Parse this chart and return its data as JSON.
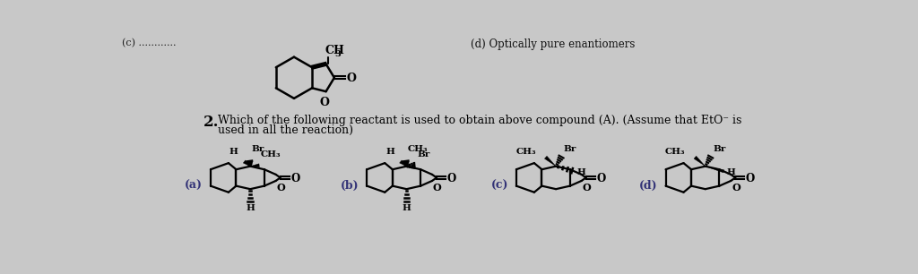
{
  "background_color": "#c8c8c8",
  "fig_width": 10.24,
  "fig_height": 3.06,
  "dpi": 100,
  "top_left_text": "(c) ............",
  "top_right_text": "(d) Optically pure enantiomers",
  "q_num": "2.",
  "q_line1": "Which of the following reactant is used to obtain above compound (A). (Assume that EtO⁻ is",
  "q_line2": "used in all the reaction)",
  "label_a": "(a)",
  "label_b": "(b)",
  "label_c": "(c)",
  "label_d": "(d)"
}
